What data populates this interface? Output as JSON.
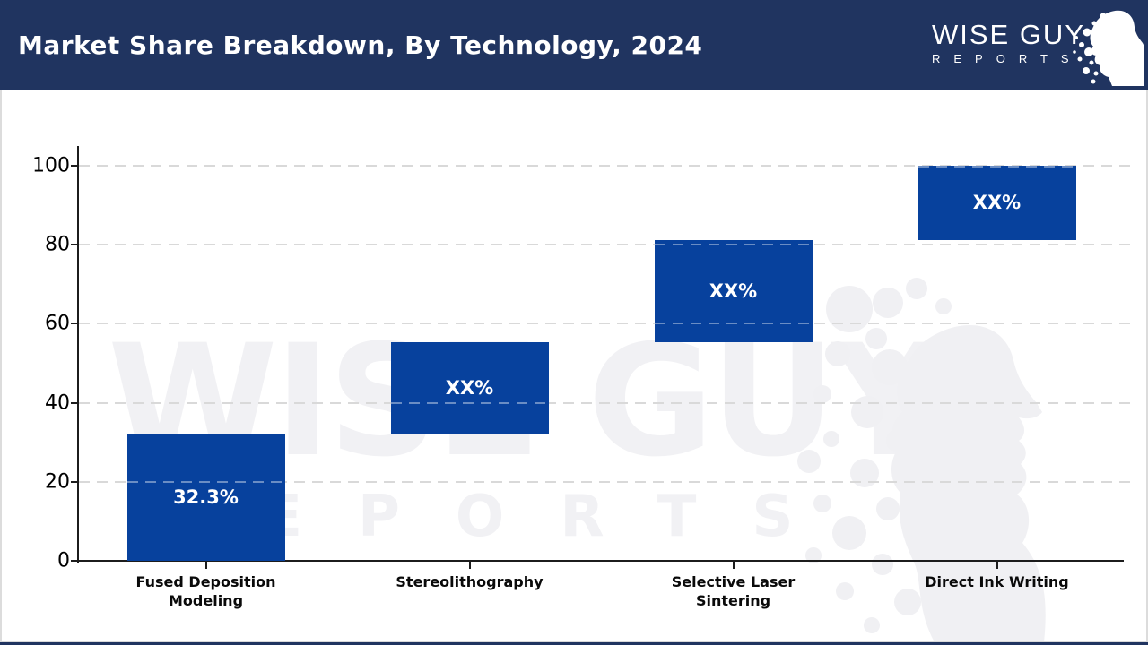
{
  "header": {
    "title": "Market Share Breakdown, By Technology, 2024",
    "brand": {
      "line1": "WISE GUY",
      "line2": "REPORTS"
    },
    "bg_color": "#203460"
  },
  "watermark": {
    "line1": "WISE GUY",
    "line2": "REPORTS"
  },
  "chart_data": {
    "type": "bar",
    "subtype": "waterfall",
    "title": "Market Share Breakdown, By Technology, 2024",
    "categories": [
      "Fused Deposition Modeling",
      "Stereolithography",
      "Selective Laser Sintering",
      "Direct Ink Writing"
    ],
    "segments": [
      {
        "label": "32.3%",
        "start": 0,
        "end": 32.3,
        "estimated_value": 32.3
      },
      {
        "label": "XX%",
        "start": 32.3,
        "end": 55.4,
        "estimated_value": 23.1
      },
      {
        "label": "XX%",
        "start": 55.4,
        "end": 81.2,
        "estimated_value": 25.8
      },
      {
        "label": "XX%",
        "start": 81.2,
        "end": 100,
        "estimated_value": 18.8
      }
    ],
    "ylim": [
      0,
      100
    ],
    "yticks": [
      0,
      20,
      40,
      60,
      80,
      100
    ],
    "xlabel": "",
    "ylabel": "",
    "grid": "horizontal-dashed",
    "legend": "none",
    "bar_color": "#07419D",
    "grid_color": "#d9d9d9",
    "axis_color": "#1c1c1c"
  },
  "footer": {
    "bg_color": "#203460"
  }
}
